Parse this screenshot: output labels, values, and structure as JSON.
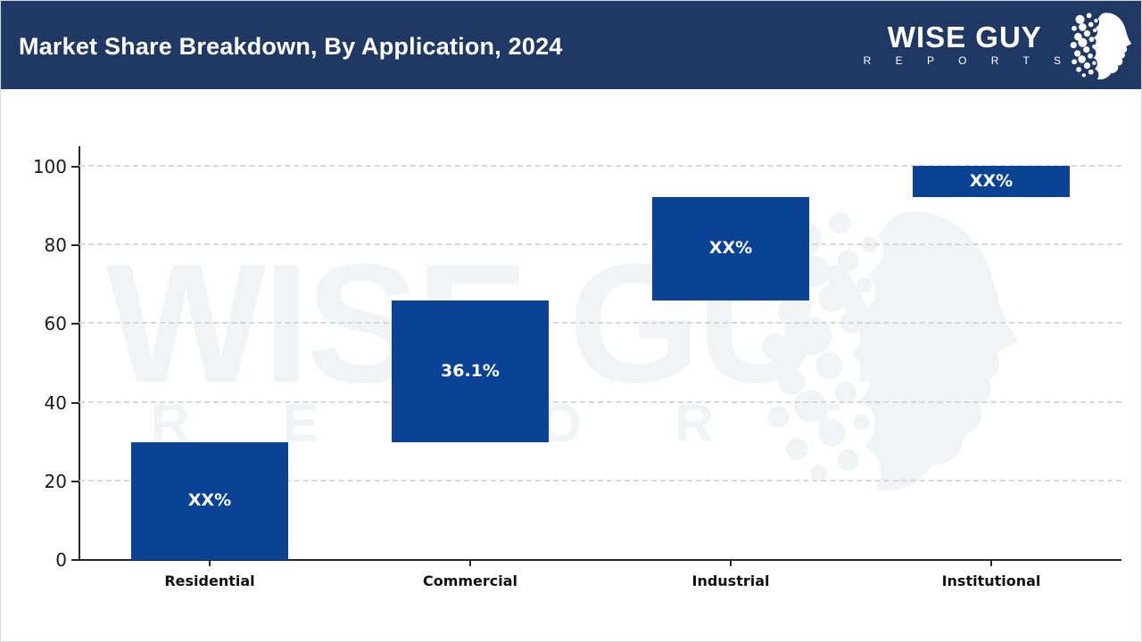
{
  "header": {
    "title": "Market Share Breakdown, By Application, 2024",
    "bg_color": "#203864",
    "logo": {
      "line1": "WISE GUY",
      "line2": "R E P O R T S"
    }
  },
  "watermark": {
    "line1": "WISE GUY",
    "line2": "R E P O R T S"
  },
  "chart_data": {
    "type": "bar",
    "subtype": "waterfall-floating-bars",
    "title": "Market Share Breakdown, By Application, 2024",
    "categories": [
      "Residential",
      "Commercial",
      "Industrial",
      "Institutional"
    ],
    "segments": [
      {
        "category": "Residential",
        "start": 0,
        "value": 30,
        "label": "XX%"
      },
      {
        "category": "Commercial",
        "start": 30,
        "value": 36.1,
        "label": "36.1%"
      },
      {
        "category": "Industrial",
        "start": 66.1,
        "value": 26.2,
        "label": "XX%"
      },
      {
        "category": "Institutional",
        "start": 92.3,
        "value": 7.9,
        "label": "XX%"
      }
    ],
    "xlabel": "",
    "ylabel": "",
    "yticks": [
      0,
      20,
      40,
      60,
      80,
      100
    ],
    "ylim": [
      0,
      100
    ],
    "grid": "horizontal-dashed",
    "legend": "none",
    "bar_color": "#0a4296",
    "gridline_color": "#d7d7d7",
    "label_color": "#ffffff"
  }
}
